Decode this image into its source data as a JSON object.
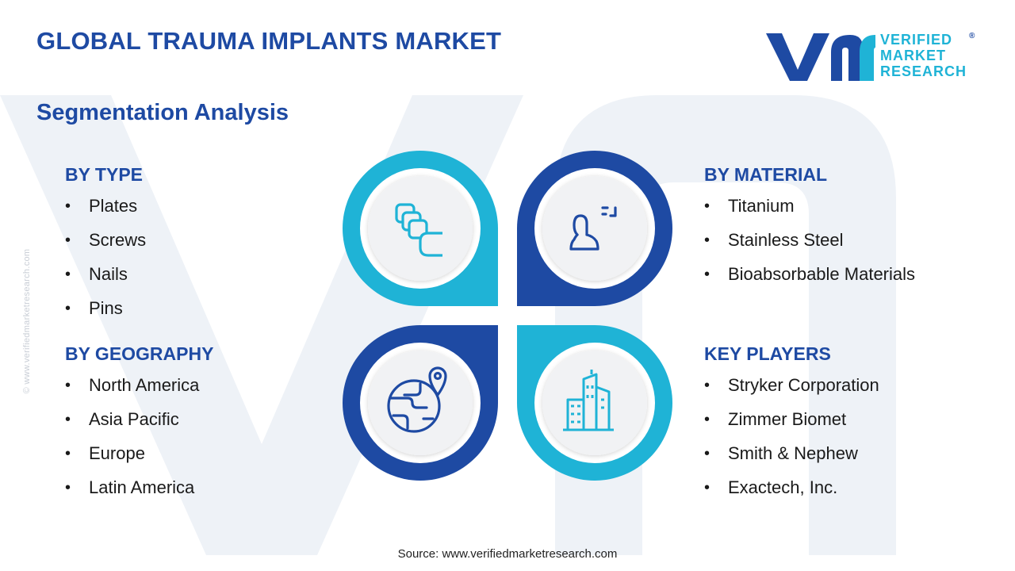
{
  "header": {
    "title": "GLOBAL TRAUMA IMPLANTS MARKET",
    "subtitle": "Segmentation Analysis"
  },
  "logo": {
    "line1": "VERIFIED",
    "line2": "MARKET",
    "line3": "RESEARCH",
    "registered": "®"
  },
  "side_watermark": "© www.verifiedmarketresearch.com",
  "segments": {
    "type": {
      "heading": "BY TYPE",
      "items": [
        "Plates",
        "Screws",
        "Nails",
        "Pins"
      ]
    },
    "geography": {
      "heading": "BY GEOGRAPHY",
      "items": [
        "North America",
        "Asia Pacific",
        "Europe",
        "Latin America"
      ]
    },
    "material": {
      "heading": "BY MATERIAL",
      "items": [
        "Titanium",
        "Stainless Steel",
        "Bioabsorbable Materials"
      ]
    },
    "key_players": {
      "heading": "KEY PLAYERS",
      "items": [
        "Stryker Corporation",
        "Zimmer Biomet",
        "Smith & Nephew",
        "Exactech, Inc."
      ]
    }
  },
  "icons": {
    "top_left": "layers-icon",
    "top_right": "person-scan-icon",
    "bottom_left": "globe-location-icon",
    "bottom_right": "buildings-icon"
  },
  "colors": {
    "navy": "#1e4aa3",
    "cyan": "#1fb3d6",
    "circle_fill": "#f1f2f4"
  },
  "footer": {
    "source": "Source: www.verifiedmarketresearch.com"
  }
}
